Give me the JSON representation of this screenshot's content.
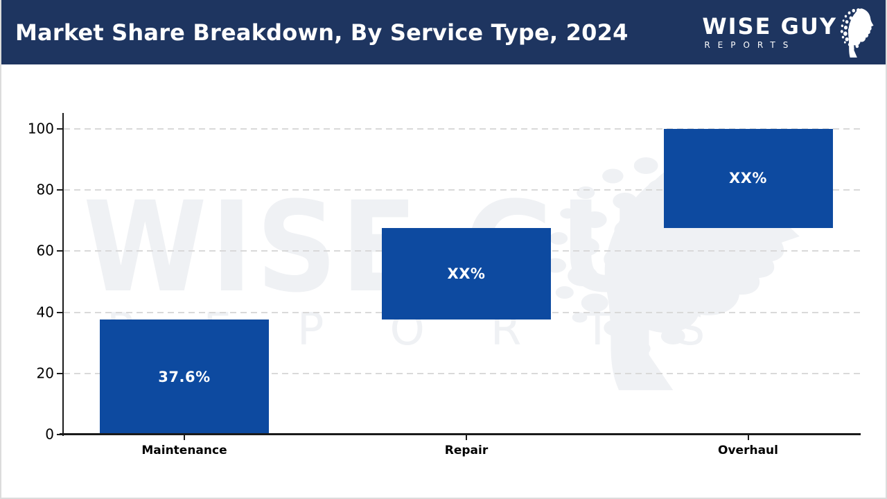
{
  "header": {
    "title": "Market Share Breakdown, By Service Type, 2024",
    "logo": {
      "line1": "WISE GUY",
      "line2": "REPORTS"
    }
  },
  "watermark": {
    "line1": "WISE GUY",
    "line2": "REPORTS"
  },
  "chart_data": {
    "type": "bar",
    "subtype": "waterfall-floating-bars",
    "title": "Market Share Breakdown, By Service Type, 2024",
    "categories": [
      "Maintenance",
      "Repair",
      "Overhaul"
    ],
    "segments": [
      {
        "category": "Maintenance",
        "start": 0,
        "end": 37.6,
        "label": "37.6%"
      },
      {
        "category": "Repair",
        "start": 37.6,
        "end": 67.6,
        "label": "XX%"
      },
      {
        "category": "Overhaul",
        "start": 67.6,
        "end": 100,
        "label": "XX%"
      }
    ],
    "ylim": [
      0,
      100
    ],
    "yticks": [
      0,
      20,
      40,
      60,
      80,
      100
    ],
    "xlabel": "",
    "ylabel": "",
    "grid": "dashed-horizontal",
    "legend": "none",
    "bar_color": "#0d4aa0",
    "bar_label_color": "#ffffff",
    "colors": {
      "header_bg": "#1e3560",
      "grid": "#d9d9d9",
      "axis": "#1a1a1a",
      "watermark": "#eff1f4"
    }
  }
}
